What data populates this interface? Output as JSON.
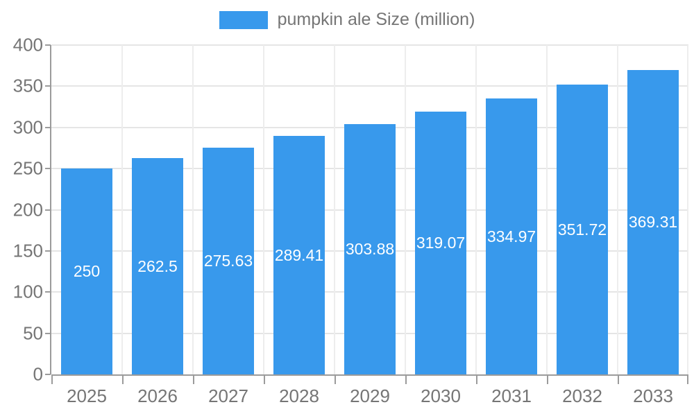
{
  "chart_data": {
    "type": "bar",
    "title": "",
    "legend": "pumpkin ale Size (million)",
    "legend_position": "top",
    "categories": [
      "2025",
      "2026",
      "2027",
      "2028",
      "2029",
      "2030",
      "2031",
      "2032",
      "2033"
    ],
    "series": [
      {
        "name": "pumpkin ale Size (million)",
        "values": [
          250,
          262.5,
          275.63,
          289.41,
          303.88,
          319.07,
          334.97,
          351.72,
          369.31
        ],
        "labels": [
          "250",
          "262.5",
          "275.63",
          "289.41",
          "303.88",
          "319.07",
          "334.97",
          "351.72",
          "369.31"
        ]
      }
    ],
    "xlabel": "",
    "ylabel": "",
    "ylim": [
      0,
      400
    ],
    "y_ticks": [
      0,
      50,
      100,
      150,
      200,
      250,
      300,
      350,
      400
    ],
    "grid": "horizontal-and-vertical",
    "colors": {
      "bar": "#3899EC",
      "axis": "#9b9b9b",
      "grid_h": "#e5e5e5",
      "grid_v": "#ededed",
      "tick_text": "#757575",
      "value_text": "#ffffff",
      "background": "#ffffff"
    }
  }
}
